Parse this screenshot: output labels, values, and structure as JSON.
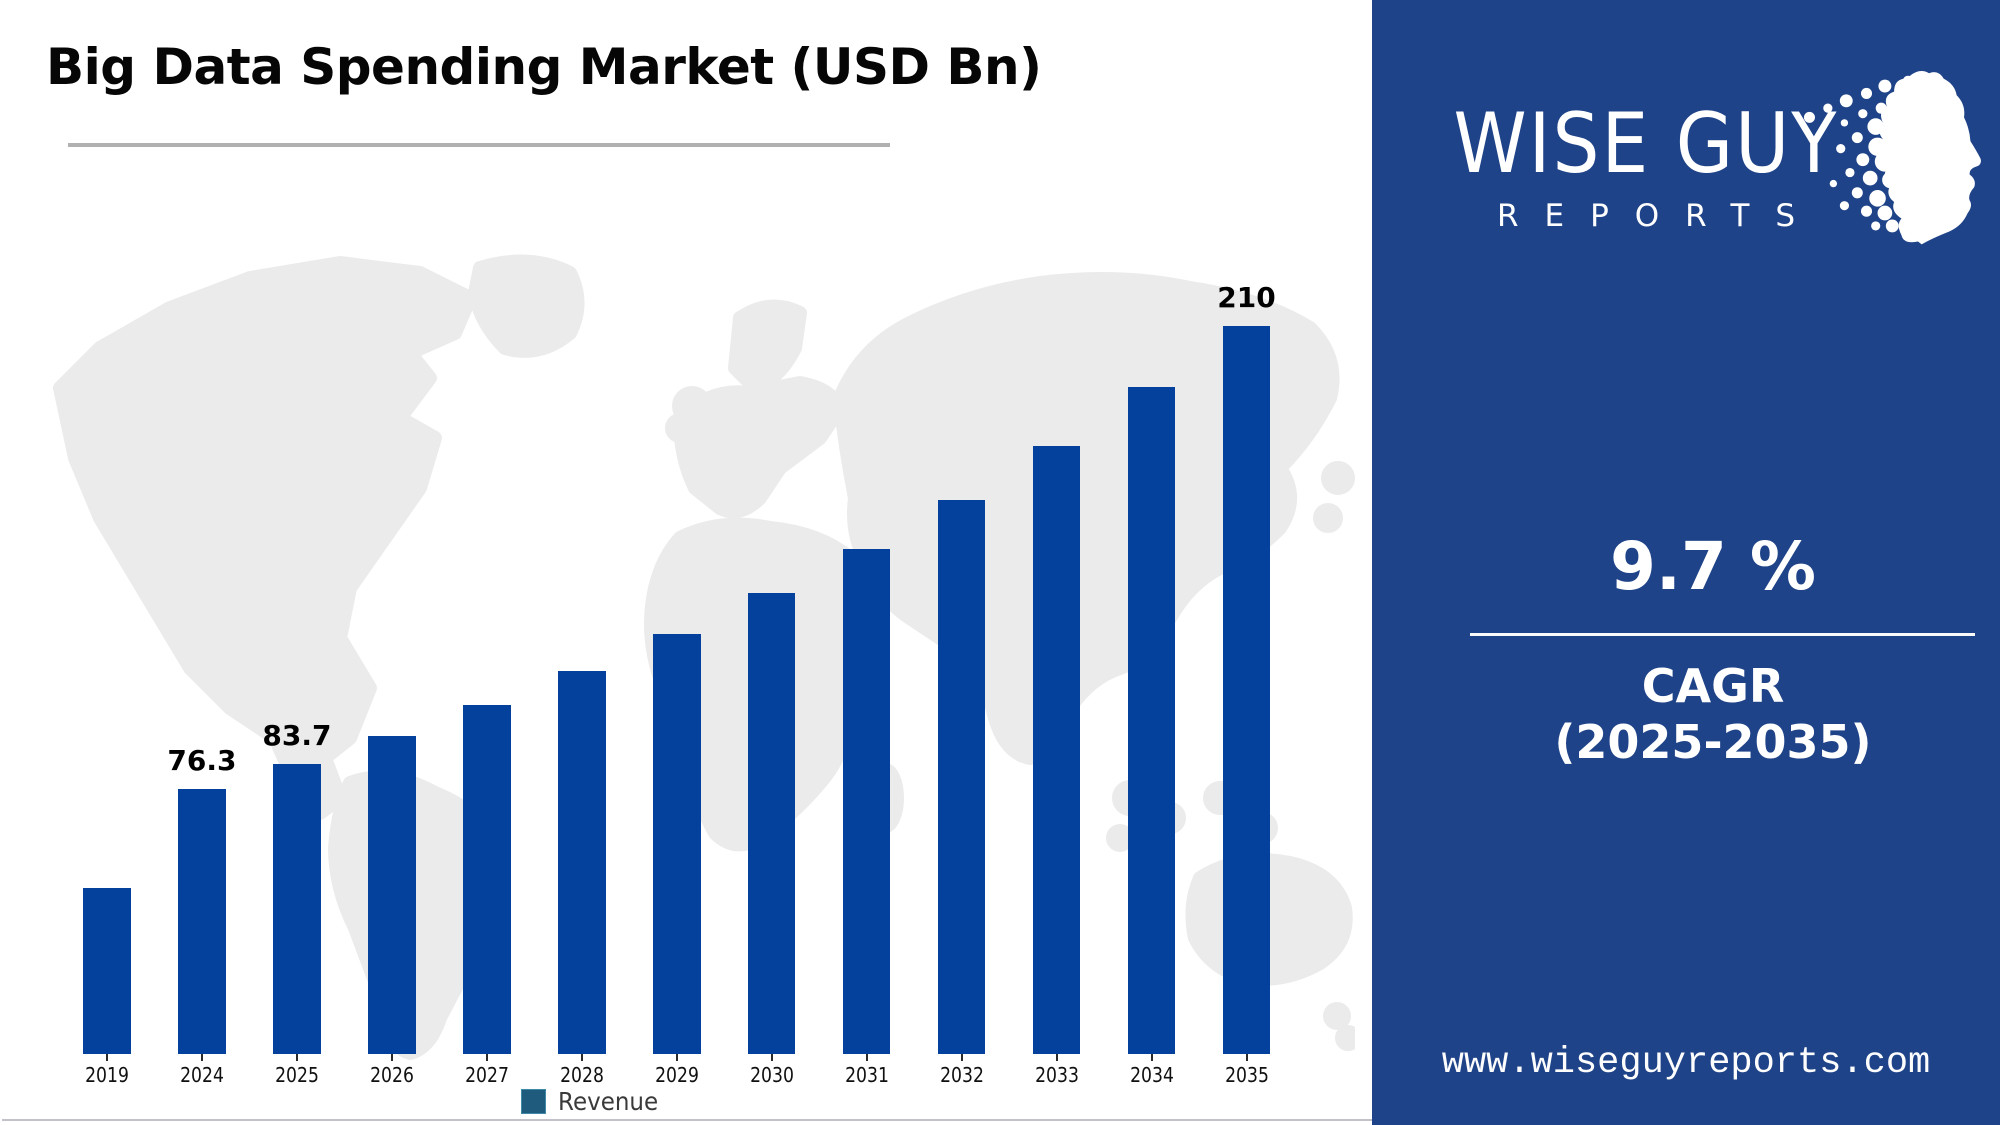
{
  "title": "Big Data Spending Market (USD Bn)",
  "chart_data": {
    "type": "bar",
    "title": "Big Data Spending Market (USD Bn)",
    "categories": [
      "2019",
      "2024",
      "2025",
      "2026",
      "2027",
      "2028",
      "2029",
      "2030",
      "2031",
      "2032",
      "2033",
      "2034",
      "2035"
    ],
    "values": [
      48,
      76.3,
      83.7,
      91.8,
      100.7,
      110.5,
      121.2,
      132.9,
      145.8,
      159.9,
      175.4,
      192.4,
      210
    ],
    "value_labels": {
      "2024": "76.3",
      "2025": "83.7",
      "2035": "210"
    },
    "legend": [
      "Revenue"
    ],
    "legend_position": "bottom",
    "xlabel": "",
    "ylabel": "",
    "ylim": [
      0,
      230
    ],
    "grid": false,
    "bar_color": "#04419c",
    "background_map_color": "#ebebeb"
  },
  "sidebar": {
    "logo_line1": "WISE GUY",
    "logo_line2": "REPORTS",
    "cagr_value": "9.7 %",
    "cagr_label": "CAGR",
    "cagr_range": "(2025-2035)",
    "website": "www.wiseguyreports.com",
    "background_color": "#1f4388"
  }
}
